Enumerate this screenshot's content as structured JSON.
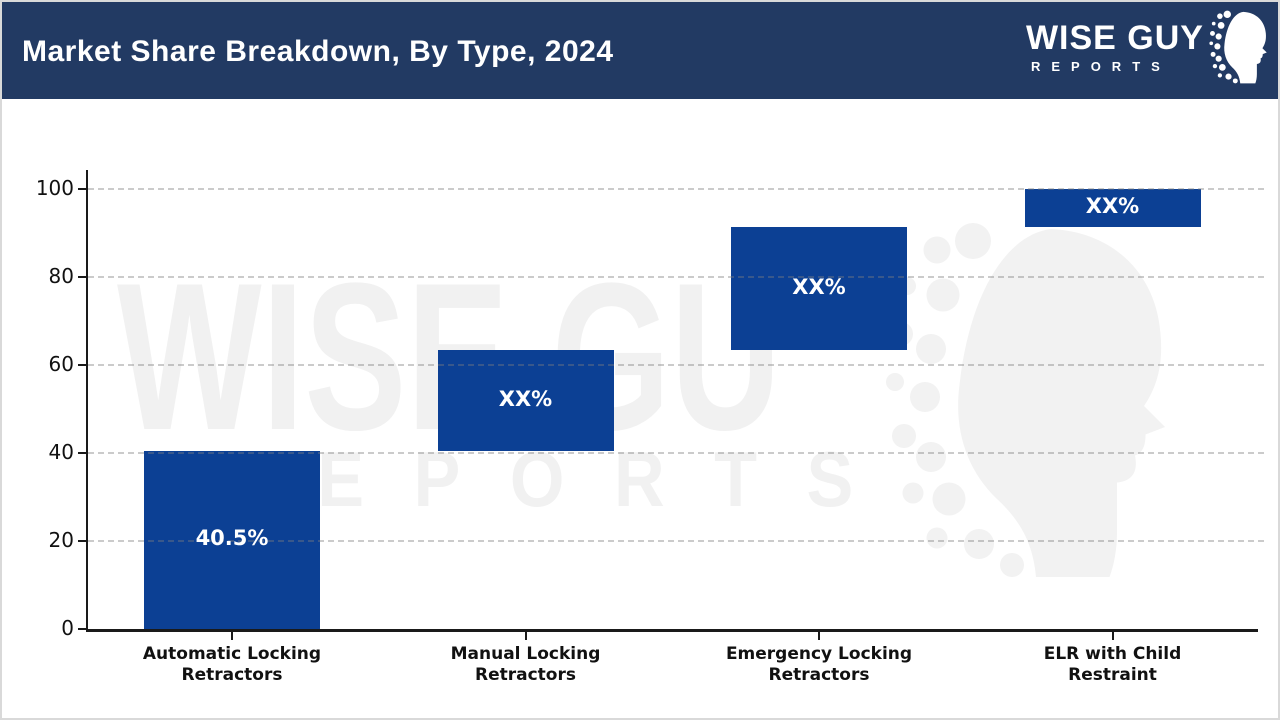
{
  "header": {
    "title": "Market Share Breakdown, By Type, 2024",
    "bg_color": "#223a63",
    "logo": {
      "line1": "WISE GUY",
      "line2": "REPORTS"
    }
  },
  "watermark": {
    "line1": "WISE GU",
    "line2": "REPORTS"
  },
  "chart_data": {
    "type": "bar",
    "subtype": "waterfall-floating-bars",
    "title": "Market Share Breakdown, By Type, 2024",
    "categories": [
      "Automatic Locking\nRetractors",
      "Manual Locking\nRetractors",
      "Emergency Locking\nRetractors",
      "ELR with Child\nRestraint"
    ],
    "segments": [
      [
        0,
        40.5
      ],
      [
        40.5,
        63.3
      ],
      [
        63.3,
        91.4
      ],
      [
        91.4,
        100
      ]
    ],
    "bar_labels": [
      "40.5%",
      "XX%",
      "XX%",
      "XX%"
    ],
    "xlabel": "",
    "ylabel": "",
    "ylim": [
      0,
      100
    ],
    "yticks": [
      0,
      20,
      40,
      60,
      80,
      100
    ],
    "grid": "horizontal-dashed",
    "legend": "none",
    "bar_color": "#0c4094",
    "bar_label_color": "#ffffff",
    "axis_color": "#1a1a1a",
    "gridline_color": "#cbcbcb",
    "header_bg": "#223a63"
  }
}
